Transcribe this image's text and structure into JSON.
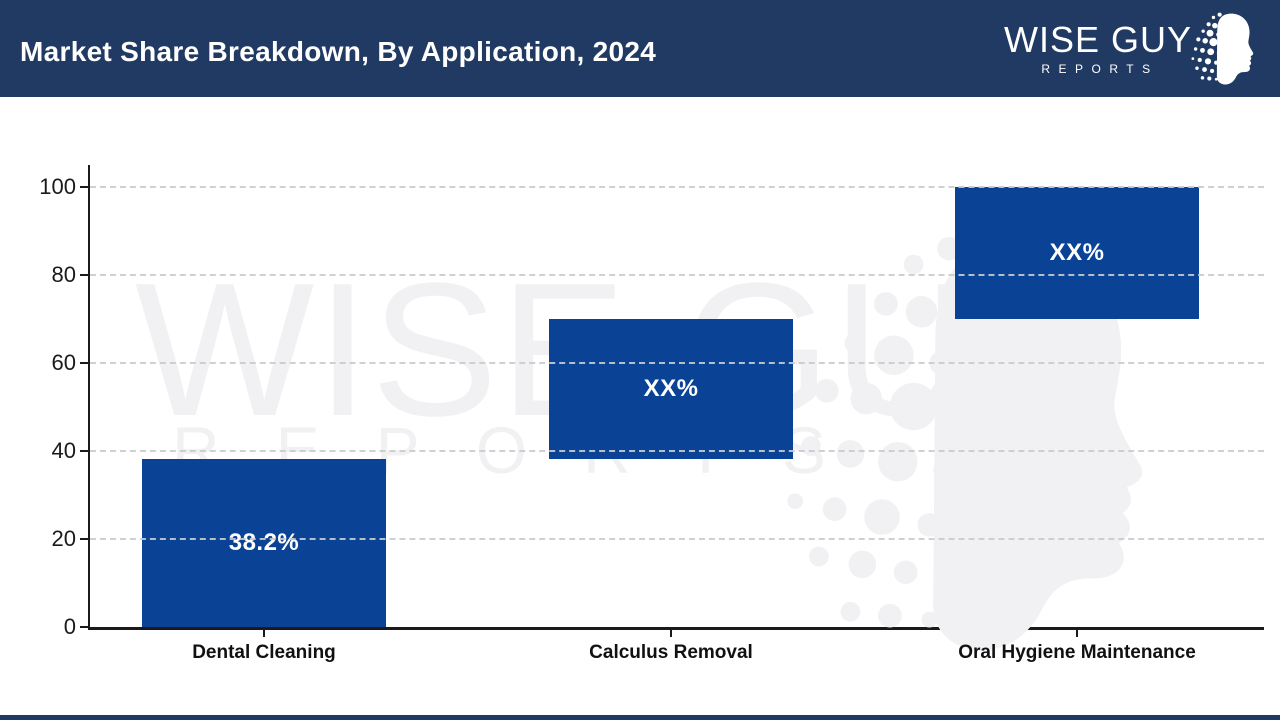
{
  "theme": {
    "header_bg": "#213A63",
    "footer_bg": "#213A63",
    "bar_color": "#0A4296",
    "bar_label_color": "#FFFFFF",
    "axis_color": "#1A1A1A",
    "gridline_color": "#C9CCCE",
    "watermark_color": "#F1F1F3",
    "title_color": "#FFFFFF"
  },
  "header": {
    "title": "Market Share Breakdown, By Application, 2024",
    "logo": {
      "primary": "WISE GUY",
      "secondary": "REPORTS"
    }
  },
  "watermark": {
    "primary": "WISE GUY",
    "secondary": "REPORTS"
  },
  "chart_data": {
    "type": "bar",
    "subtype": "waterfall",
    "title": "Market Share Breakdown, By Application, 2024",
    "categories": [
      "Dental Cleaning",
      "Calculus Removal",
      "Oral Hygiene Maintenance"
    ],
    "segments": [
      {
        "category": "Dental Cleaning",
        "start": 0,
        "end": 38.2,
        "label": "38.2%"
      },
      {
        "category": "Calculus Removal",
        "start": 38.2,
        "end": 70,
        "label": "XX%"
      },
      {
        "category": "Oral Hygiene Maintenance",
        "start": 70,
        "end": 100,
        "label": "XX%"
      }
    ],
    "ylim": [
      0,
      100
    ],
    "yticks": [
      0,
      20,
      40,
      60,
      80,
      100
    ],
    "xlabel": "",
    "ylabel": "",
    "grid": "horizontal-dashed-over-bars",
    "legend": "none"
  }
}
